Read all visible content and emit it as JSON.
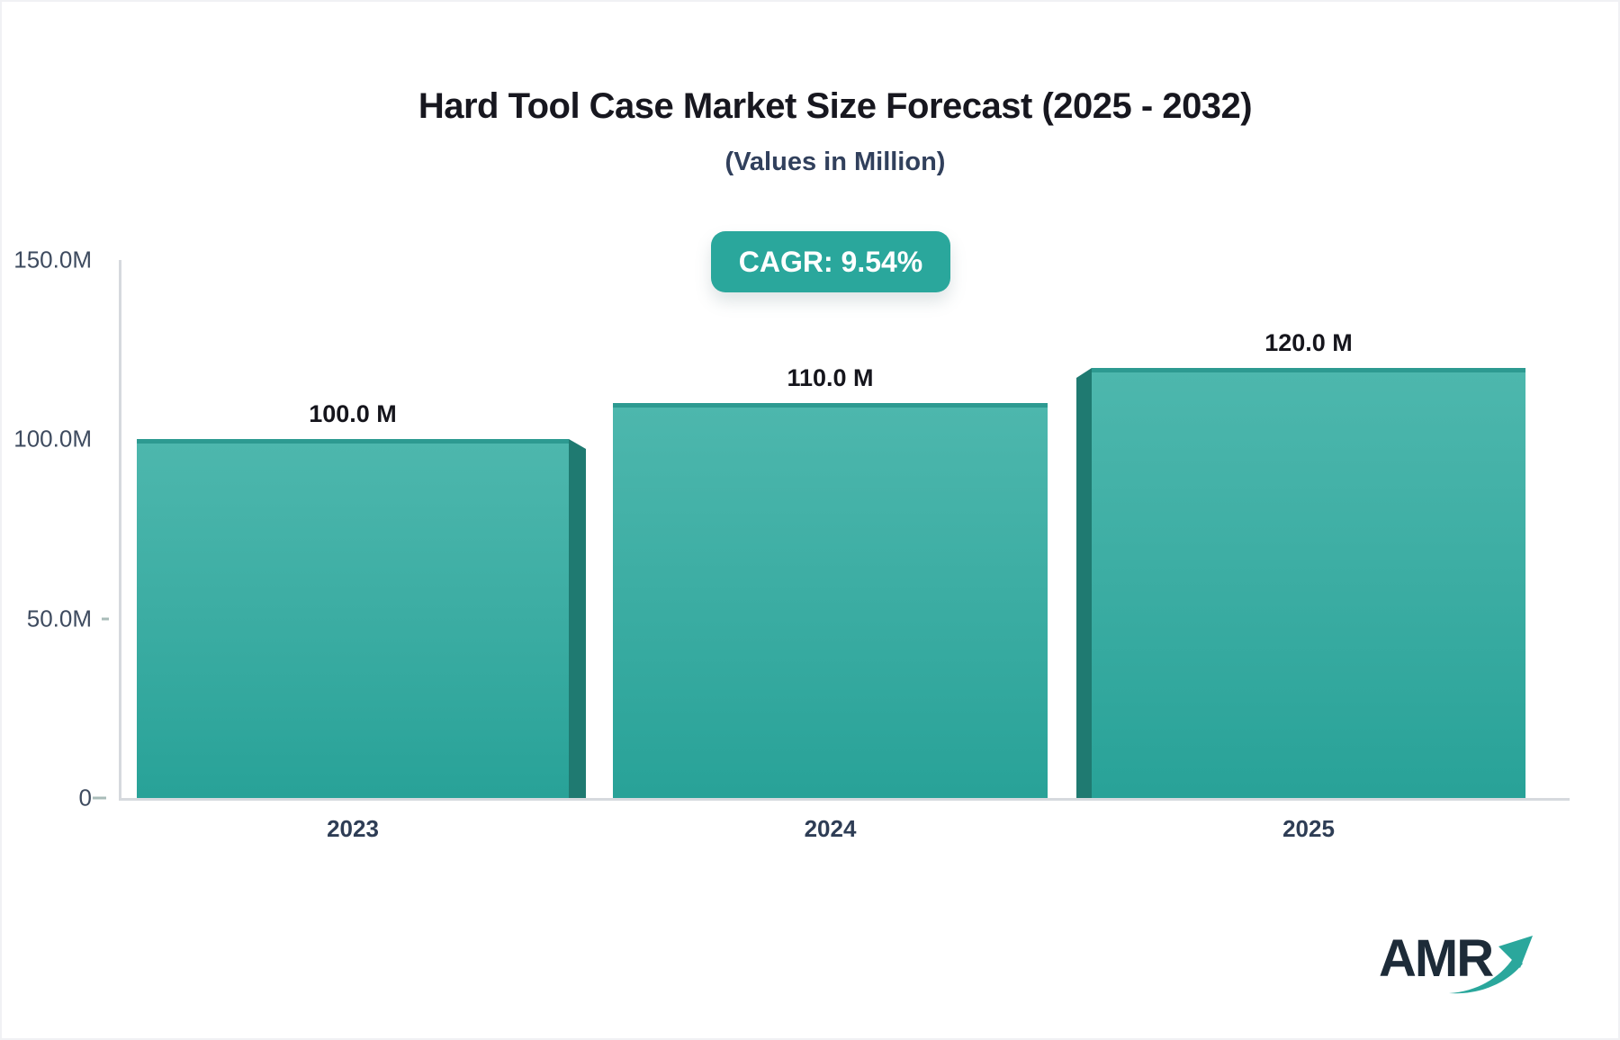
{
  "header": {
    "title": "Hard Tool Case Market Size Forecast (2025 - 2032)",
    "subtitle": "(Values in Million)",
    "cagr_badge": "CAGR: 9.54%"
  },
  "chart_data": {
    "type": "bar",
    "title": "Hard Tool Case Market Size Forecast (2025 - 2032)",
    "subtitle": "(Values in Million)",
    "unit": "Million",
    "categories": [
      "2023",
      "2024",
      "2025"
    ],
    "values": [
      100.0,
      110.0,
      120.0
    ],
    "bar_labels": [
      "100.0 M",
      "110.0 M",
      "120.0 M"
    ],
    "cagr_percent": 9.54,
    "xlabel": "",
    "ylabel": "",
    "ylim": [
      0,
      150
    ],
    "y_ticks": [
      {
        "label": "150.0M",
        "value": 150
      },
      {
        "label": "100.0M",
        "value": 100
      },
      {
        "label": "50.0M",
        "value": 50
      },
      {
        "label": "0",
        "value": 0
      }
    ],
    "grid": false,
    "legend": false
  },
  "colors": {
    "bar_gradient_top": "#4db7ad",
    "bar_gradient_bottom": "#28a298",
    "bar_side": "#1f7a71",
    "badge_bg": "#2aa79c",
    "badge_text": "#ffffff",
    "axis_line": "#d6d9de",
    "title_text": "#17171f",
    "subtitle_text": "#31405c"
  },
  "logo": {
    "text": "AMR"
  }
}
